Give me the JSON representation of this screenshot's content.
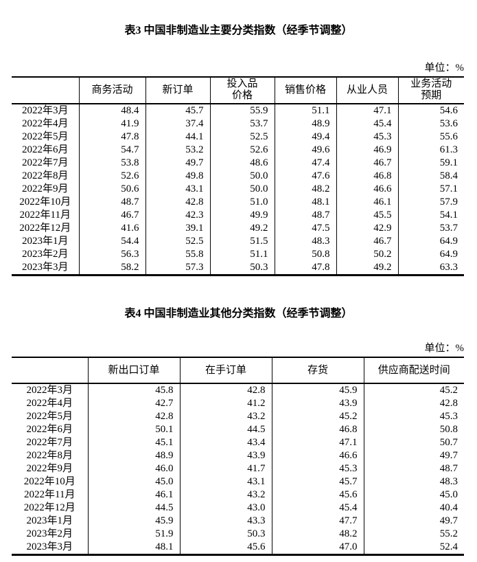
{
  "table3": {
    "title": "表3 中国非制造业主要分类指数（经季节调整）",
    "unit_label": "单位：%",
    "columns": [
      "商务活动",
      "新订单",
      "投入品\n价格",
      "销售价格",
      "从业人员",
      "业务活动\n预期"
    ],
    "rows": [
      {
        "label": "2022年3月",
        "values": [
          "48.4",
          "45.7",
          "55.9",
          "51.1",
          "47.1",
          "54.6"
        ]
      },
      {
        "label": "2022年4月",
        "values": [
          "41.9",
          "37.4",
          "53.7",
          "48.9",
          "45.4",
          "53.6"
        ]
      },
      {
        "label": "2022年5月",
        "values": [
          "47.8",
          "44.1",
          "52.5",
          "49.4",
          "45.3",
          "55.6"
        ]
      },
      {
        "label": "2022年6月",
        "values": [
          "54.7",
          "53.2",
          "52.6",
          "49.6",
          "46.9",
          "61.3"
        ]
      },
      {
        "label": "2022年7月",
        "values": [
          "53.8",
          "49.7",
          "48.6",
          "47.4",
          "46.7",
          "59.1"
        ]
      },
      {
        "label": "2022年8月",
        "values": [
          "52.6",
          "49.8",
          "50.0",
          "47.6",
          "46.8",
          "58.4"
        ]
      },
      {
        "label": "2022年9月",
        "values": [
          "50.6",
          "43.1",
          "50.0",
          "48.2",
          "46.6",
          "57.1"
        ]
      },
      {
        "label": "2022年10月",
        "values": [
          "48.7",
          "42.8",
          "51.0",
          "48.1",
          "46.1",
          "57.9"
        ]
      },
      {
        "label": "2022年11月",
        "values": [
          "46.7",
          "42.3",
          "49.9",
          "48.7",
          "45.5",
          "54.1"
        ]
      },
      {
        "label": "2022年12月",
        "values": [
          "41.6",
          "39.1",
          "49.2",
          "47.5",
          "42.9",
          "53.7"
        ]
      },
      {
        "label": "2023年1月",
        "values": [
          "54.4",
          "52.5",
          "51.5",
          "48.3",
          "46.7",
          "64.9"
        ]
      },
      {
        "label": "2023年2月",
        "values": [
          "56.3",
          "55.8",
          "51.1",
          "50.8",
          "50.2",
          "64.9"
        ]
      },
      {
        "label": "2023年3月",
        "values": [
          "58.2",
          "57.3",
          "50.3",
          "47.8",
          "49.2",
          "63.3"
        ]
      }
    ]
  },
  "table4": {
    "title": "表4 中国非制造业其他分类指数（经季节调整）",
    "unit_label": "单位：%",
    "columns": [
      "新出口订单",
      "在手订单",
      "存货",
      "供应商配送时间"
    ],
    "rows": [
      {
        "label": "2022年3月",
        "values": [
          "45.8",
          "42.8",
          "45.9",
          "45.2"
        ]
      },
      {
        "label": "2022年4月",
        "values": [
          "42.7",
          "41.2",
          "43.9",
          "42.8"
        ]
      },
      {
        "label": "2022年5月",
        "values": [
          "42.8",
          "43.2",
          "45.2",
          "45.3"
        ]
      },
      {
        "label": "2022年6月",
        "values": [
          "50.1",
          "44.5",
          "46.8",
          "50.8"
        ]
      },
      {
        "label": "2022年7月",
        "values": [
          "45.1",
          "43.4",
          "47.1",
          "50.7"
        ]
      },
      {
        "label": "2022年8月",
        "values": [
          "48.9",
          "43.9",
          "46.6",
          "49.7"
        ]
      },
      {
        "label": "2022年9月",
        "values": [
          "46.0",
          "41.7",
          "45.3",
          "48.7"
        ]
      },
      {
        "label": "2022年10月",
        "values": [
          "45.0",
          "43.1",
          "45.7",
          "48.3"
        ]
      },
      {
        "label": "2022年11月",
        "values": [
          "46.1",
          "43.2",
          "45.6",
          "45.0"
        ]
      },
      {
        "label": "2022年12月",
        "values": [
          "44.5",
          "43.0",
          "45.4",
          "40.4"
        ]
      },
      {
        "label": "2023年1月",
        "values": [
          "45.9",
          "43.3",
          "47.7",
          "49.7"
        ]
      },
      {
        "label": "2023年2月",
        "values": [
          "51.9",
          "50.3",
          "48.2",
          "55.2"
        ]
      },
      {
        "label": "2023年3月",
        "values": [
          "48.1",
          "45.6",
          "47.0",
          "52.4"
        ]
      }
    ]
  }
}
